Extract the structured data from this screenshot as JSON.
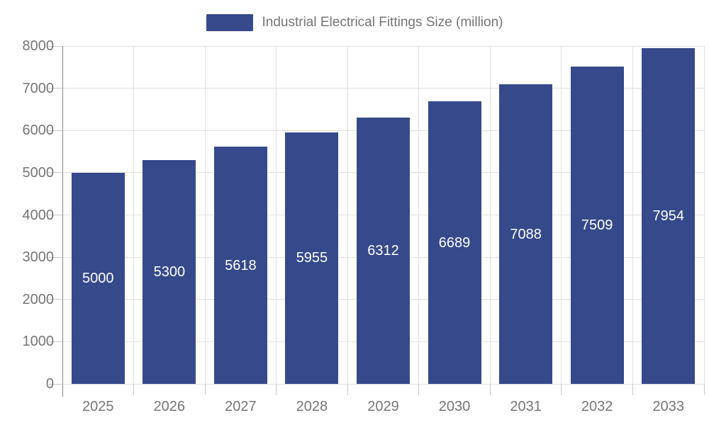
{
  "chart_data": {
    "type": "bar",
    "title": "Industrial Electrical Fittings Size (million)",
    "legend": [
      "Industrial Electrical Fittings Size (million)"
    ],
    "legend_position": "top-center",
    "categories": [
      "2025",
      "2026",
      "2027",
      "2028",
      "2029",
      "2030",
      "2031",
      "2032",
      "2033"
    ],
    "values": [
      5000,
      5300,
      5618,
      5955,
      6312,
      6689,
      7088,
      7509,
      7954
    ],
    "xlabel": "",
    "ylabel": "",
    "ylim": [
      0,
      8000
    ],
    "ytick_step": 1000,
    "ytick_labels": [
      "0",
      "1000",
      "2000",
      "3000",
      "4000",
      "5000",
      "6000",
      "7000",
      "8000"
    ],
    "grid": true,
    "bar_labels_inside": true,
    "colors": {
      "bar": "#36498b",
      "bar_label": "#ffffff",
      "axis_text": "#757575",
      "grid_line": "#e0e0e0",
      "axis_line": "#888888",
      "tick_line": "#c8c8c8",
      "background": "#ffffff"
    }
  }
}
